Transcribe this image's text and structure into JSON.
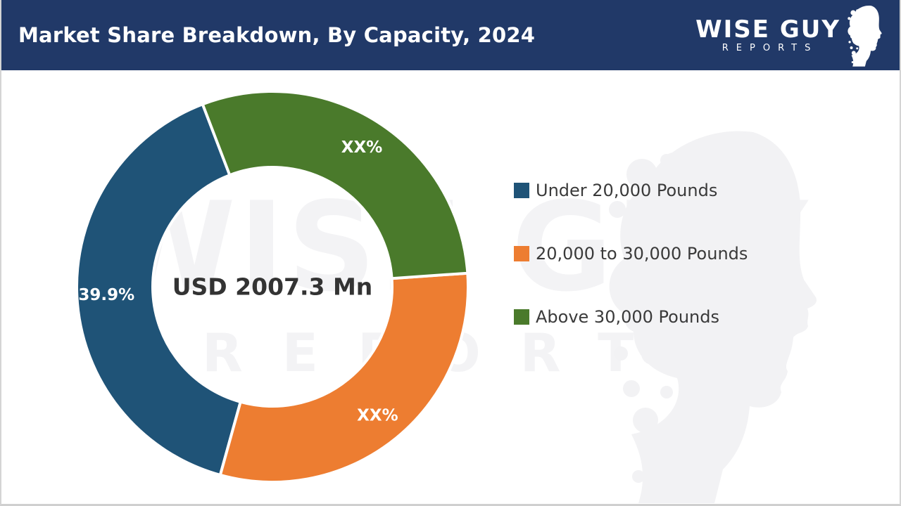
{
  "header": {
    "title": "Market Share Breakdown, By Capacity, 2024",
    "logo": {
      "line1": "WISE GUY",
      "line2": "REPORTS"
    }
  },
  "watermark": {
    "line1": "WISE GUY",
    "line2": "REPORTS"
  },
  "chart_data": {
    "type": "pie",
    "subtype": "donut",
    "title": "Market Share Breakdown, By Capacity, 2024",
    "center_label": "USD 2007.3 Mn",
    "donut_hole_ratio": 0.61,
    "start_angle_deg": 110.9,
    "direction": "counterclockwise",
    "legend_position": "right",
    "slices": [
      {
        "label": "Under 20,000 Pounds",
        "display_pct": "39.9%",
        "value_pct_est": 39.9,
        "color": "#1F5377"
      },
      {
        "label": "20,000 to 30,000 Pounds",
        "display_pct": "XX%",
        "value_pct_est": 30.4,
        "color": "#ED7D31"
      },
      {
        "label": "Above 30,000 Pounds",
        "display_pct": "XX%",
        "value_pct_est": 29.7,
        "color": "#4A7A2B"
      }
    ]
  },
  "colors": {
    "header_bg": "#213968",
    "slice_separator": "#FFFFFF",
    "pct_label_text": "#FFFFFF",
    "center_text": "#333333",
    "legend_text": "#3A3A3A",
    "watermark": "#F3F3F5",
    "frame_border": "#D4D4D4"
  }
}
